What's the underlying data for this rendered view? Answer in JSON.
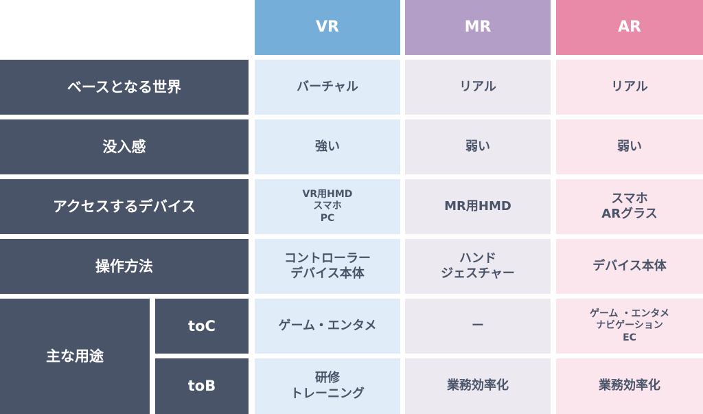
{
  "header": {
    "columns": [
      "VR",
      "MR",
      "AR"
    ]
  },
  "rows": [
    {
      "label": "ベースとなる世界",
      "cells": [
        "バーチャル",
        "リアル",
        "リアル"
      ]
    },
    {
      "label": "没入感",
      "cells": [
        "強い",
        "弱い",
        "弱い"
      ]
    },
    {
      "label": "アクセスするデバイス",
      "cells": [
        "VR用HMD\nスマホ\nPC",
        "MR用HMD",
        "スマホ\nARグラス"
      ]
    },
    {
      "label": "操作方法",
      "cells": [
        "コントローラー\nデバイス本体",
        "ハンド\nジェスチャー",
        "デバイス本体"
      ]
    }
  ],
  "group": {
    "label": "主な用途",
    "subrows": [
      {
        "label": "toC",
        "cells": [
          "ゲーム・エンタメ",
          "ー",
          "ゲーム ・エンタメ\nナビゲーション\nEC"
        ]
      },
      {
        "label": "toB",
        "cells": [
          "研修\nトレーニング",
          "業務効率化",
          "業務効率化"
        ]
      }
    ]
  }
}
